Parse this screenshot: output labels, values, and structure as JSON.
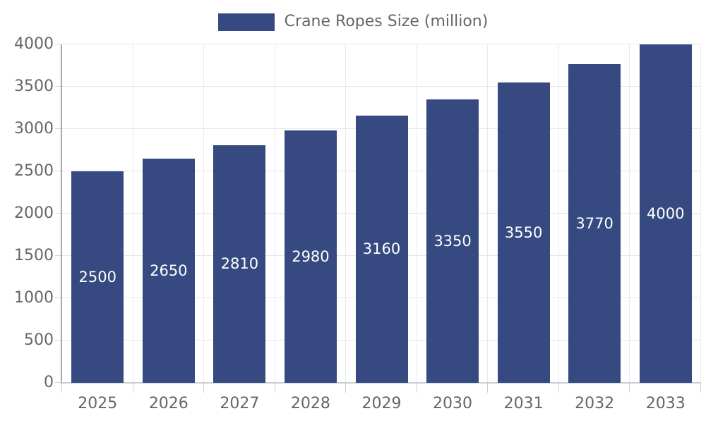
{
  "legend": {
    "label": "Crane Ropes Size (million)"
  },
  "chart_data": {
    "type": "bar",
    "title": "Crane Ropes Size (million)",
    "categories": [
      "2025",
      "2026",
      "2027",
      "2028",
      "2029",
      "2030",
      "2031",
      "2032",
      "2033"
    ],
    "values": [
      2500,
      2650,
      2810,
      2980,
      3160,
      3350,
      3550,
      3770,
      4000
    ],
    "xlabel": "",
    "ylabel": "",
    "ylim": [
      0,
      4000
    ],
    "ytick_step": 500,
    "yticks": [
      0,
      500,
      1000,
      1500,
      2000,
      2500,
      3000,
      3500,
      4000
    ],
    "grid": true,
    "legend_position": "top-center",
    "bar_labels": "inside-center"
  },
  "colors": {
    "bar": "#364A81",
    "bar_label": "#FFFFFF",
    "axis_text": "#666666",
    "legend_text": "#666666",
    "gridline_h": "#E6E6E6",
    "gridline_v": "#EAEAEA",
    "y_axis_line": "#A6A6A6",
    "x_axis_line": "#C9CDD4",
    "y_tick": "#D6D6D6",
    "x_tick": "#C9D0DD",
    "background": "#FFFFFF"
  }
}
